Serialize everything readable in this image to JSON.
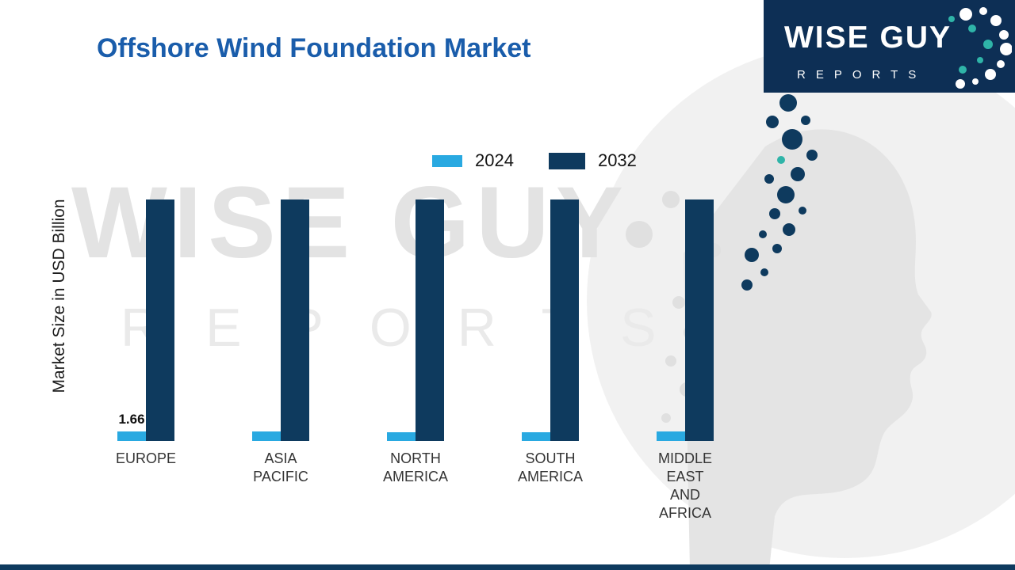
{
  "page": {
    "title": "Offshore Wind Foundation Market",
    "ylabel": "Market Size in USD Billion"
  },
  "legend": {
    "items": [
      {
        "label": "2024",
        "color": "#29a9e1"
      },
      {
        "label": "2032",
        "color": "#0e3a5e"
      }
    ]
  },
  "logo": {
    "name": "WISE GUY",
    "sub": "REPORTS"
  },
  "watermark": {
    "name": "WISE GUY",
    "sub": "REPORTS"
  },
  "colors": {
    "title": "#1a5dab",
    "series_2024": "#29a9e1",
    "series_2032": "#0e3a5e",
    "logo_background": "#0d2f55",
    "logo_accent_teal": "#2fb4a8"
  },
  "chart_data": {
    "type": "bar",
    "title": "Offshore Wind Foundation Market",
    "xlabel": "",
    "ylabel": "Market Size in USD Billion",
    "categories": [
      "EUROPE",
      "ASIA PACIFIC",
      "NORTH AMERICA",
      "SOUTH AMERICA",
      "MIDDLE EAST AND AFRICA"
    ],
    "categories_display": [
      [
        "EUROPE"
      ],
      [
        "ASIA",
        "PACIFIC"
      ],
      [
        "NORTH",
        "AMERICA"
      ],
      [
        "SOUTH",
        "AMERICA"
      ],
      [
        "MIDDLE",
        "EAST",
        "AND",
        "AFRICA"
      ]
    ],
    "series": [
      {
        "name": "2024",
        "color": "#29a9e1",
        "values": [
          1.66,
          1.6,
          1.55,
          1.55,
          1.6
        ],
        "labels": [
          "1.66",
          "",
          "",
          "",
          ""
        ]
      },
      {
        "name": "2032",
        "color": "#0e3a5e",
        "values": [
          42,
          42,
          42,
          42,
          42
        ],
        "labels": [
          "",
          "",
          "",
          "",
          ""
        ]
      }
    ],
    "ylim": [
      0,
      42
    ],
    "grid": false,
    "legend_position": "top-center"
  }
}
